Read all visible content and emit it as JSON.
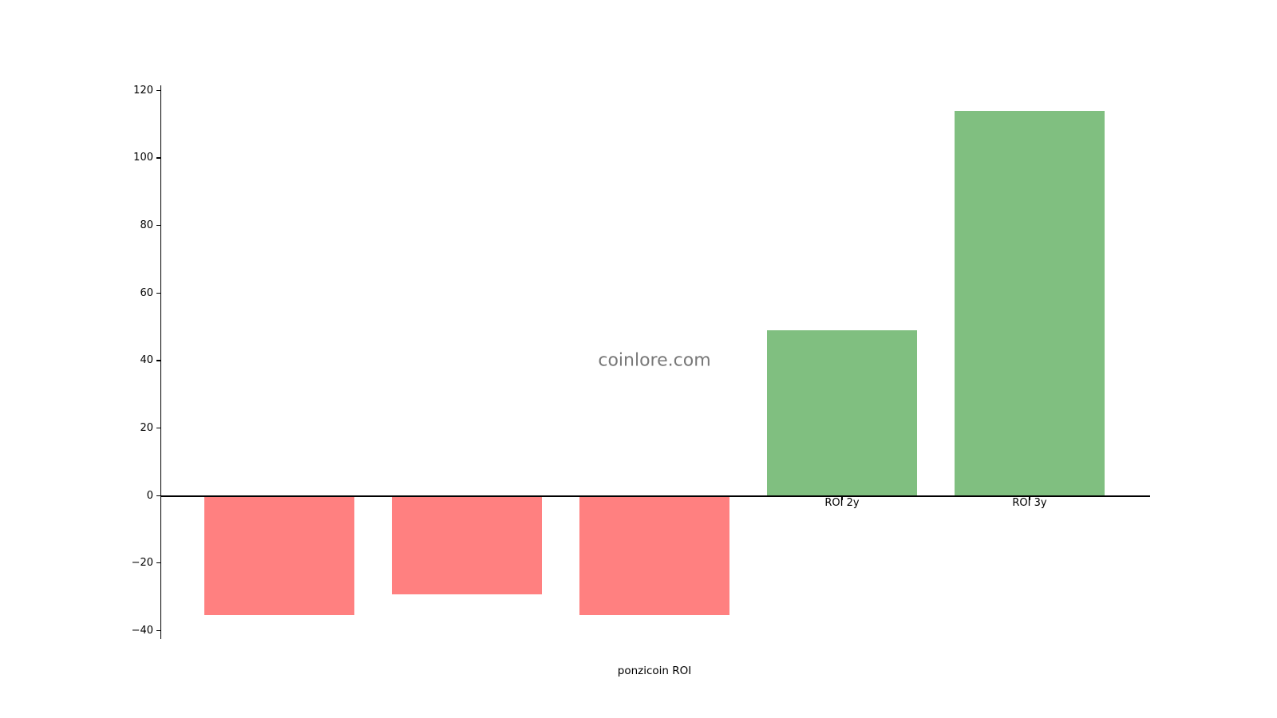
{
  "chart_data": {
    "type": "bar",
    "title": "",
    "xlabel": "ponzicoin ROI",
    "ylabel": "",
    "watermark": "coinlore.com",
    "categories": [
      "",
      "",
      "",
      "ROI 2y",
      "ROI 3y"
    ],
    "values": [
      -35,
      -29,
      -35,
      49,
      114
    ],
    "yticks": [
      120,
      100,
      80,
      60,
      40,
      20,
      0,
      -20,
      -40
    ],
    "ylim": [
      -42.5,
      121.5
    ],
    "grid": false,
    "legend_position": "none",
    "colors": {
      "positive_bar": "#80bf80",
      "negative_bar": "#ff8080",
      "axis": "#000000",
      "watermark_text": "#787878",
      "label_text": "#000000"
    }
  }
}
